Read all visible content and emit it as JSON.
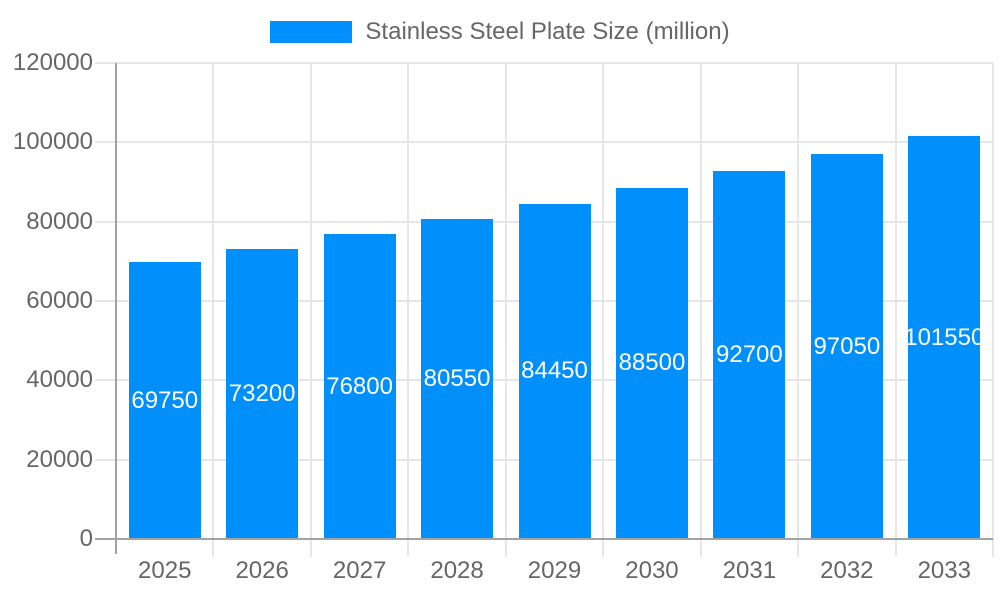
{
  "chart_data": {
    "type": "bar",
    "series_name": "Stainless Steel Plate Size (million)",
    "categories": [
      "2025",
      "2026",
      "2027",
      "2028",
      "2029",
      "2030",
      "2031",
      "2032",
      "2033"
    ],
    "values": [
      69750,
      73200,
      76800,
      80550,
      84450,
      88500,
      92700,
      97050,
      101550
    ],
    "value_labels": [
      "69750",
      "73200",
      "76800",
      "80550",
      "84450",
      "88500",
      "92700",
      "97050",
      "101550"
    ],
    "xlabel": "",
    "ylabel": "",
    "ylim": [
      0,
      120000
    ],
    "yticks": [
      0,
      20000,
      40000,
      60000,
      80000,
      100000,
      120000
    ],
    "grid": true,
    "legend_position": "top",
    "value_labels_position": "inside-center",
    "colors": {
      "bar": "#008FFB",
      "value_label": "#ffffff",
      "axis_text": "#666666",
      "grid_line": "#e6e6e6",
      "axis_line": "#a3a3a3",
      "background": "#ffffff"
    }
  }
}
